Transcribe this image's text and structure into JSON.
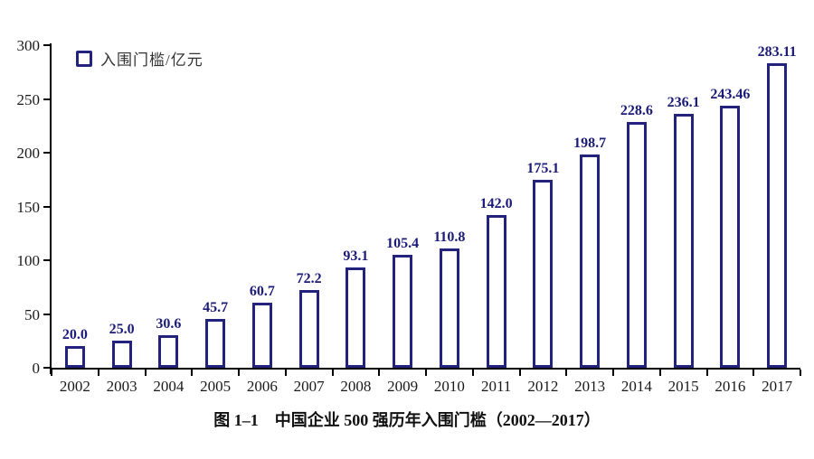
{
  "chart_data": {
    "type": "bar",
    "title": "图 1–1　中国企业 500 强历年入围门槛（2002—2017）",
    "legend": "入围门槛/亿元",
    "categories": [
      "2002",
      "2003",
      "2004",
      "2005",
      "2006",
      "2007",
      "2008",
      "2009",
      "2010",
      "2011",
      "2012",
      "2013",
      "2014",
      "2015",
      "2016",
      "2017"
    ],
    "values": [
      20.0,
      25.0,
      30.6,
      45.7,
      60.7,
      72.2,
      93.1,
      105.4,
      110.8,
      142.0,
      175.1,
      198.7,
      228.6,
      236.1,
      243.46,
      283.11
    ],
    "value_labels": [
      "20.0",
      "25.0",
      "30.6",
      "45.7",
      "60.7",
      "72.2",
      "93.1",
      "105.4",
      "110.8",
      "142.0",
      "175.1",
      "198.7",
      "228.6",
      "236.1",
      "243.46",
      "283.11"
    ],
    "xlabel": "",
    "ylabel": "",
    "ylim": [
      0,
      300
    ],
    "yticks": [
      0,
      50,
      100,
      150,
      200,
      250,
      300
    ],
    "grid": false,
    "legend_position": "top-left",
    "colors": {
      "bar_border": "#23237d",
      "bar_fill": "#ffffff",
      "value_label": "#1b1b78",
      "axis": "#000000",
      "tick_label": "#1a1a1a",
      "legend_text": "#333333",
      "title": "#111111"
    }
  }
}
